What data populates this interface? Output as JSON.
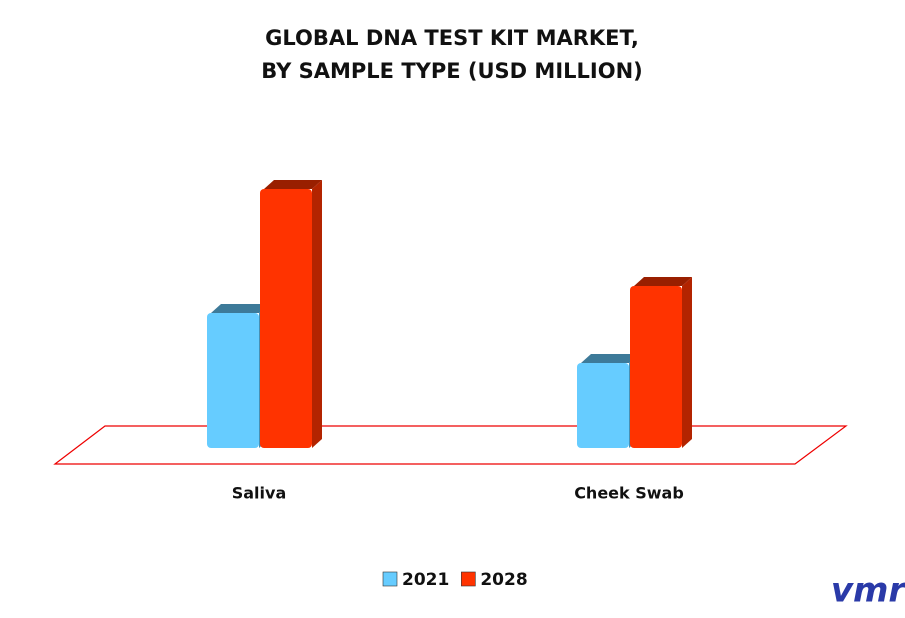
{
  "chart_data": {
    "type": "bar3d",
    "title": [
      "GLOBAL DNA TEST KIT MARKET,",
      "BY SAMPLE TYPE (USD MILLION)"
    ],
    "categories": [
      "Saliva",
      "Cheek Swab"
    ],
    "series": [
      {
        "name": "2021",
        "color": "#66ccff",
        "values": [
          135,
          85
        ]
      },
      {
        "name": "2028",
        "color": "#ff3300",
        "values": [
          259,
          162
        ]
      }
    ],
    "legend": "bottom"
  },
  "logo": "vmr"
}
